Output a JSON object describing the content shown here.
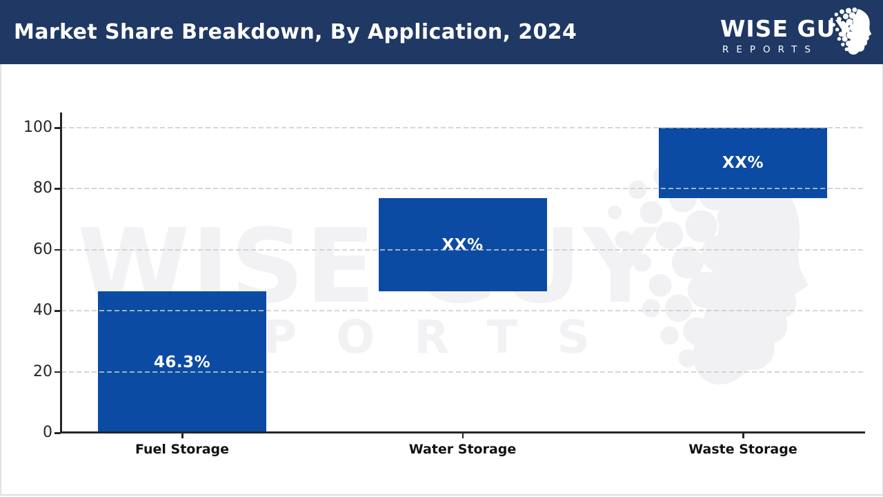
{
  "header": {
    "title": "Market Share Breakdown, By Application, 2024",
    "logo": {
      "line1": "WISE GUY",
      "line2": "REPORTS"
    }
  },
  "watermark": {
    "line1": "WISE GUY",
    "line2": "REPORTS"
  },
  "colors": {
    "header_bg": "#1f3864",
    "bar": "#0c4ba3",
    "grid": "#d9d9d9",
    "axis": "#262626",
    "bar_label": "#ffffff",
    "watermark": "#f2f2f4"
  },
  "chart_data": {
    "type": "bar",
    "subtype": "floating cumulative percentage segments (waterfall to 100%)",
    "title": "Market Share Breakdown, By Application, 2024",
    "categories": [
      "Fuel Storage",
      "Water Storage",
      "Waste Storage"
    ],
    "bars": [
      {
        "category": "Fuel Storage",
        "start": 0,
        "end": 46.3,
        "label": "46.3%"
      },
      {
        "category": "Water Storage",
        "start": 46.3,
        "end": 76.9,
        "label": "XX%"
      },
      {
        "category": "Waste Storage",
        "start": 76.9,
        "end": 100,
        "label": "XX%"
      }
    ],
    "xlabel": "",
    "ylabel": "",
    "ylim": [
      0,
      100
    ],
    "yticks": [
      0,
      20,
      40,
      60,
      80,
      100
    ],
    "grid": "horizontal dashed, drawn above bars",
    "legend": "none",
    "bar_color": "#0c4ba3",
    "label_color": "#ffffff"
  }
}
